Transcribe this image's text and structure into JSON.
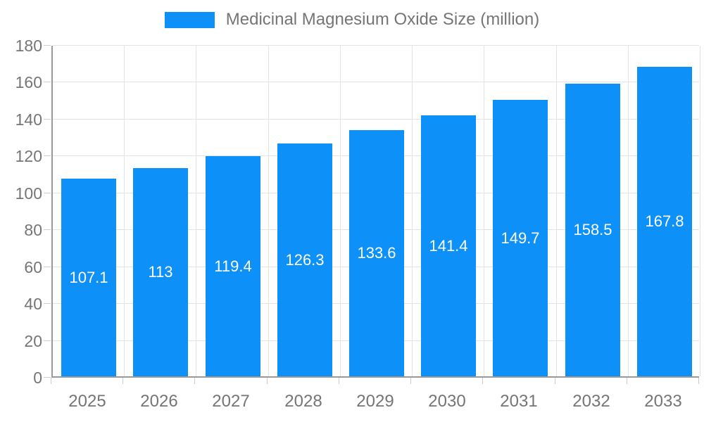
{
  "legend": {
    "label": "Medicinal Magnesium Oxide Size (million)"
  },
  "colors": {
    "bar": "#0e90f9",
    "axis_line": "#999999",
    "grid_line": "#e3e3e3",
    "tick_mark": "#cccccc",
    "axis_text": "#757575",
    "bar_label_text": "#ffffff"
  },
  "chart_data": {
    "type": "bar",
    "title": "Medicinal Magnesium Oxide Size (million)",
    "categories": [
      "2025",
      "2026",
      "2027",
      "2028",
      "2029",
      "2030",
      "2031",
      "2032",
      "2033"
    ],
    "values": [
      107.1,
      113,
      119.4,
      126.3,
      133.6,
      141.4,
      149.7,
      158.5,
      167.8
    ],
    "bar_labels": [
      "107.1",
      "113",
      "119.4",
      "126.3",
      "133.6",
      "141.4",
      "149.7",
      "158.5",
      "167.8"
    ],
    "xlabel": "",
    "ylabel": "",
    "ylim": [
      0,
      180
    ],
    "yticks": [
      0,
      20,
      40,
      60,
      80,
      100,
      120,
      140,
      160,
      180
    ],
    "grid": true,
    "legend_position": "top",
    "bar_color": "#0e90f9",
    "value_label_position": "inside-center"
  }
}
